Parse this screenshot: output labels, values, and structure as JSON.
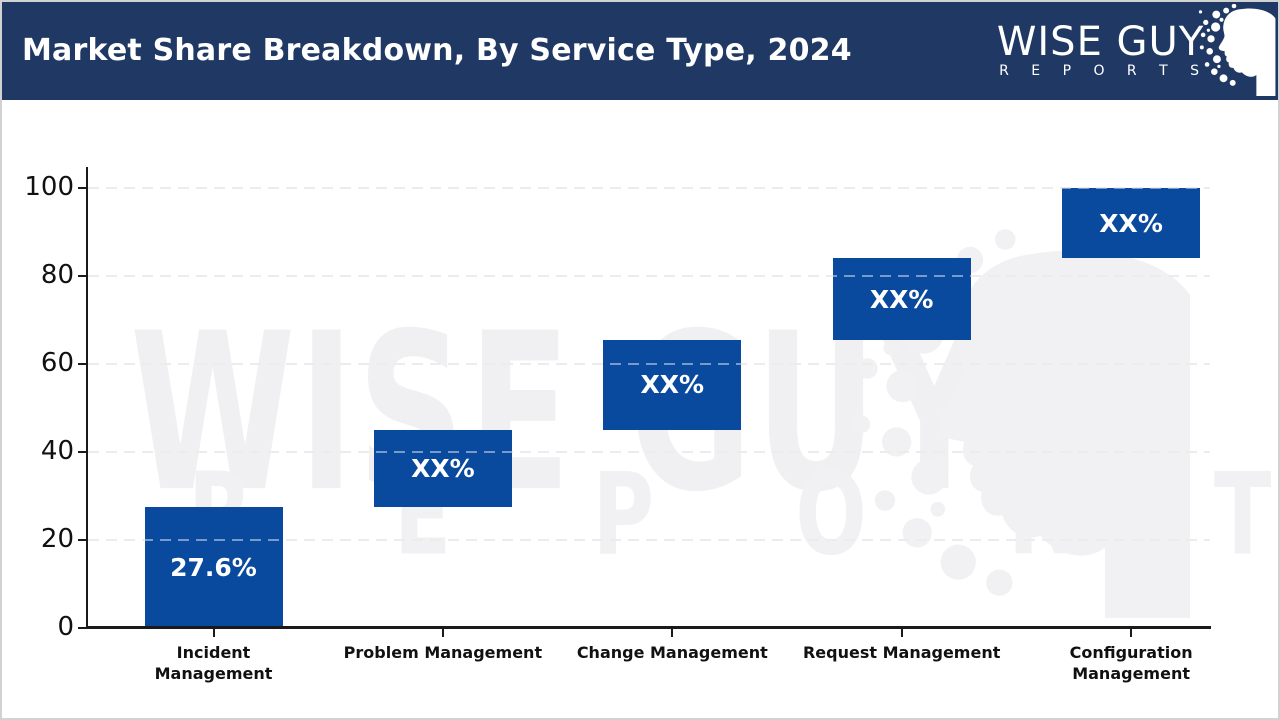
{
  "header": {
    "title": "Market Share Breakdown, By Service Type, 2024",
    "brand": {
      "name": "WISE GUY",
      "reports_spaced": "R E P O R T S"
    }
  },
  "watermark": {
    "line1": "WISE GUY",
    "line2": "R E P O R T S"
  },
  "colors": {
    "header_bg": "#1f3864",
    "bar": "#0a4a9e",
    "axis": "#1a1a1a",
    "gridline": "#dcdcdc",
    "watermark": "#f1f1f3",
    "bar_label_text": "#ffffff"
  },
  "chart_data": {
    "type": "bar",
    "subtype": "waterfall",
    "title": "Market Share Breakdown, By Service Type, 2024",
    "categories": [
      "Incident Management",
      "Problem Management",
      "Change Management",
      "Request Management",
      "Configuration Management"
    ],
    "category_label_lines": [
      [
        "Incident",
        "Management"
      ],
      [
        "Problem Management"
      ],
      [
        "Change Management"
      ],
      [
        "Request Management"
      ],
      [
        "Configuration",
        "Management"
      ]
    ],
    "segments": [
      {
        "category": "Incident Management",
        "start": 0,
        "end": 27.6,
        "label": "27.6%"
      },
      {
        "category": "Problem Management",
        "start": 27.6,
        "end": 45,
        "label": "XX%"
      },
      {
        "category": "Change Management",
        "start": 45,
        "end": 65.5,
        "label": "XX%"
      },
      {
        "category": "Request Management",
        "start": 65.5,
        "end": 84,
        "label": "XX%"
      },
      {
        "category": "Configuration Management",
        "start": 84,
        "end": 100,
        "label": "XX%"
      }
    ],
    "ylim": [
      0,
      100
    ],
    "yticks": [
      0,
      20,
      40,
      60,
      80,
      100
    ],
    "xlabel": "",
    "ylabel": "",
    "grid": "horizontal-dashed",
    "legend": "none"
  }
}
